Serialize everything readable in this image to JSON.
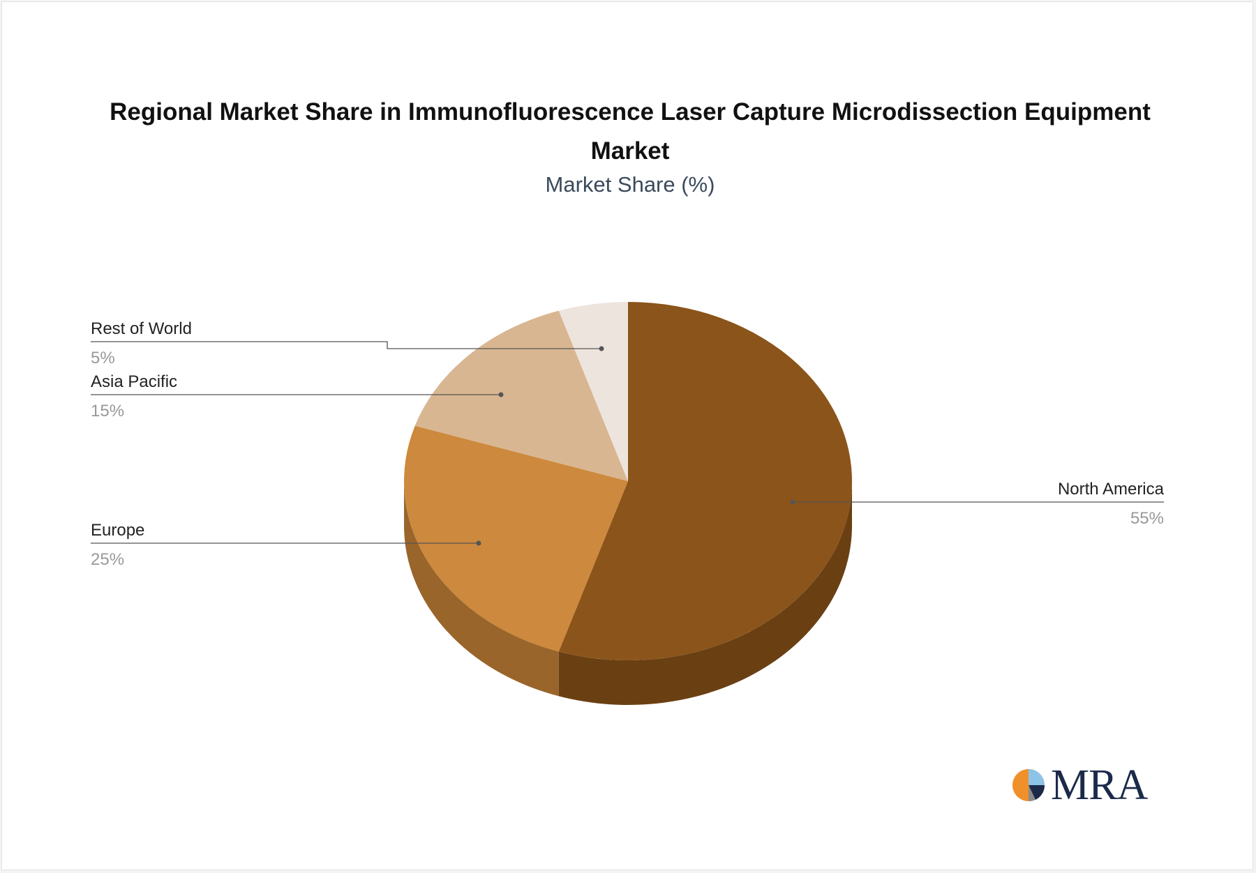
{
  "title": "Regional Market Share in Immunofluorescence Laser Capture Microdissection Equipment Market",
  "subtitle": "Market Share (%)",
  "logo_text": "MRA",
  "chart_data": {
    "type": "pie",
    "style": "3d",
    "title": "Regional Market Share in Immunofluorescence Laser Capture Microdissection Equipment Market",
    "subtitle": "Market Share (%)",
    "slices": [
      {
        "label": "North America",
        "value": 55,
        "display": "55%",
        "color": "#8b541a",
        "side_color": "#6a4013"
      },
      {
        "label": "Europe",
        "value": 25,
        "display": "25%",
        "color": "#cd893d",
        "side_color": "#9a652b"
      },
      {
        "label": "Asia Pacific",
        "value": 15,
        "display": "15%",
        "color": "#d8b691",
        "side_color": "#a88a6c"
      },
      {
        "label": "Rest of World",
        "value": 5,
        "display": "5%",
        "color": "#eee4de",
        "side_color": "#c9bdb5"
      }
    ]
  }
}
